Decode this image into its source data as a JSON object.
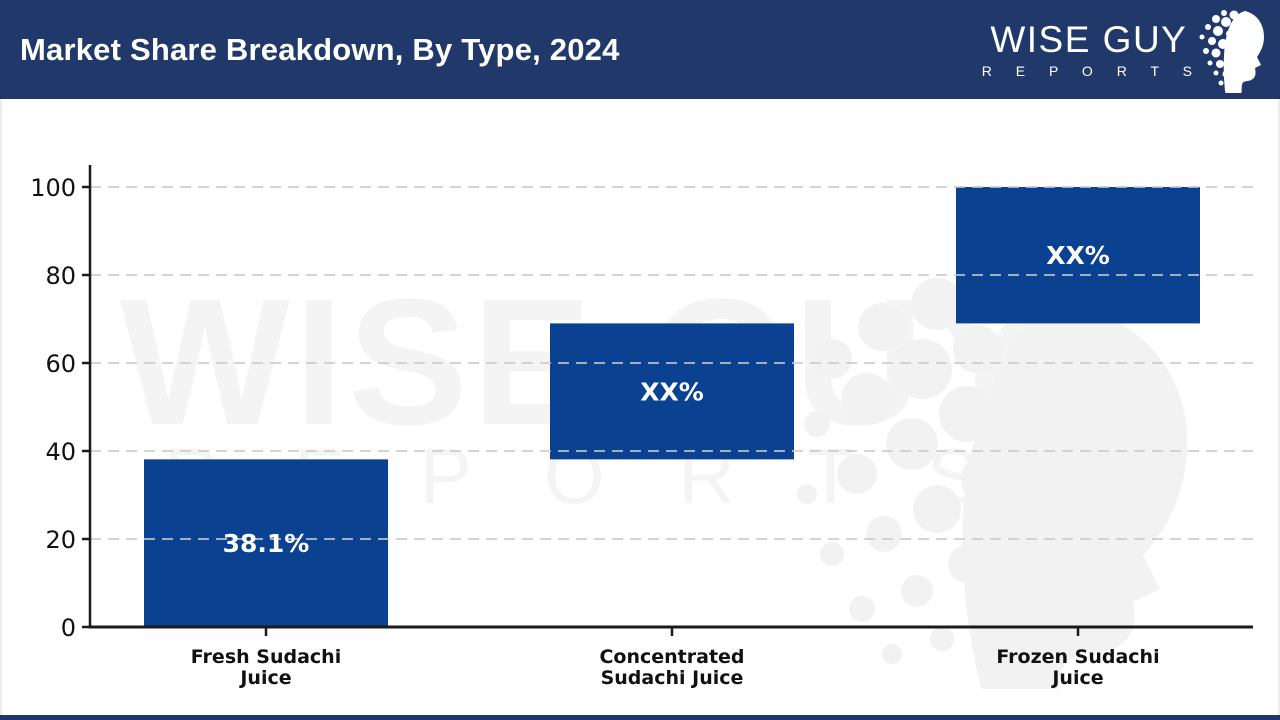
{
  "header": {
    "title": "Market Share Breakdown, By Type, 2024",
    "bg_color": "#20396a",
    "logo": {
      "name": "WISE GUY",
      "sub": "R E P O R T S"
    }
  },
  "watermark": {
    "big": "WISE GUY",
    "sub": "R E P O R T S"
  },
  "chart_data": {
    "type": "bar",
    "variant": "stacked-waterfall-segments",
    "title": "Market Share Breakdown, By Type, 2024",
    "categories": [
      [
        "Fresh Sudachi",
        "Juice"
      ],
      [
        "Concentrated",
        "Sudachi Juice"
      ],
      [
        "Frozen Sudachi",
        "Juice"
      ]
    ],
    "series": [
      {
        "name": "Fresh Sudachi Juice",
        "start": 0,
        "end": 38.1,
        "label": "38.1%"
      },
      {
        "name": "Concentrated Sudachi Juice",
        "start": 38.1,
        "end": 69,
        "label": "XX%"
      },
      {
        "name": "Frozen Sudachi Juice",
        "start": 69,
        "end": 100,
        "label": "XX%"
      }
    ],
    "yticks": [
      0,
      20,
      40,
      60,
      80,
      100
    ],
    "ylim": [
      0,
      105
    ],
    "xlabel": "",
    "ylabel": "",
    "grid": "dashed-horizontal",
    "legend": "none",
    "colors": {
      "bar": "#0b4191",
      "bar_label": "#ffffff",
      "grid": "#c9c9c9",
      "axis": "#1a1a1a",
      "tick_label": "#111111"
    }
  }
}
